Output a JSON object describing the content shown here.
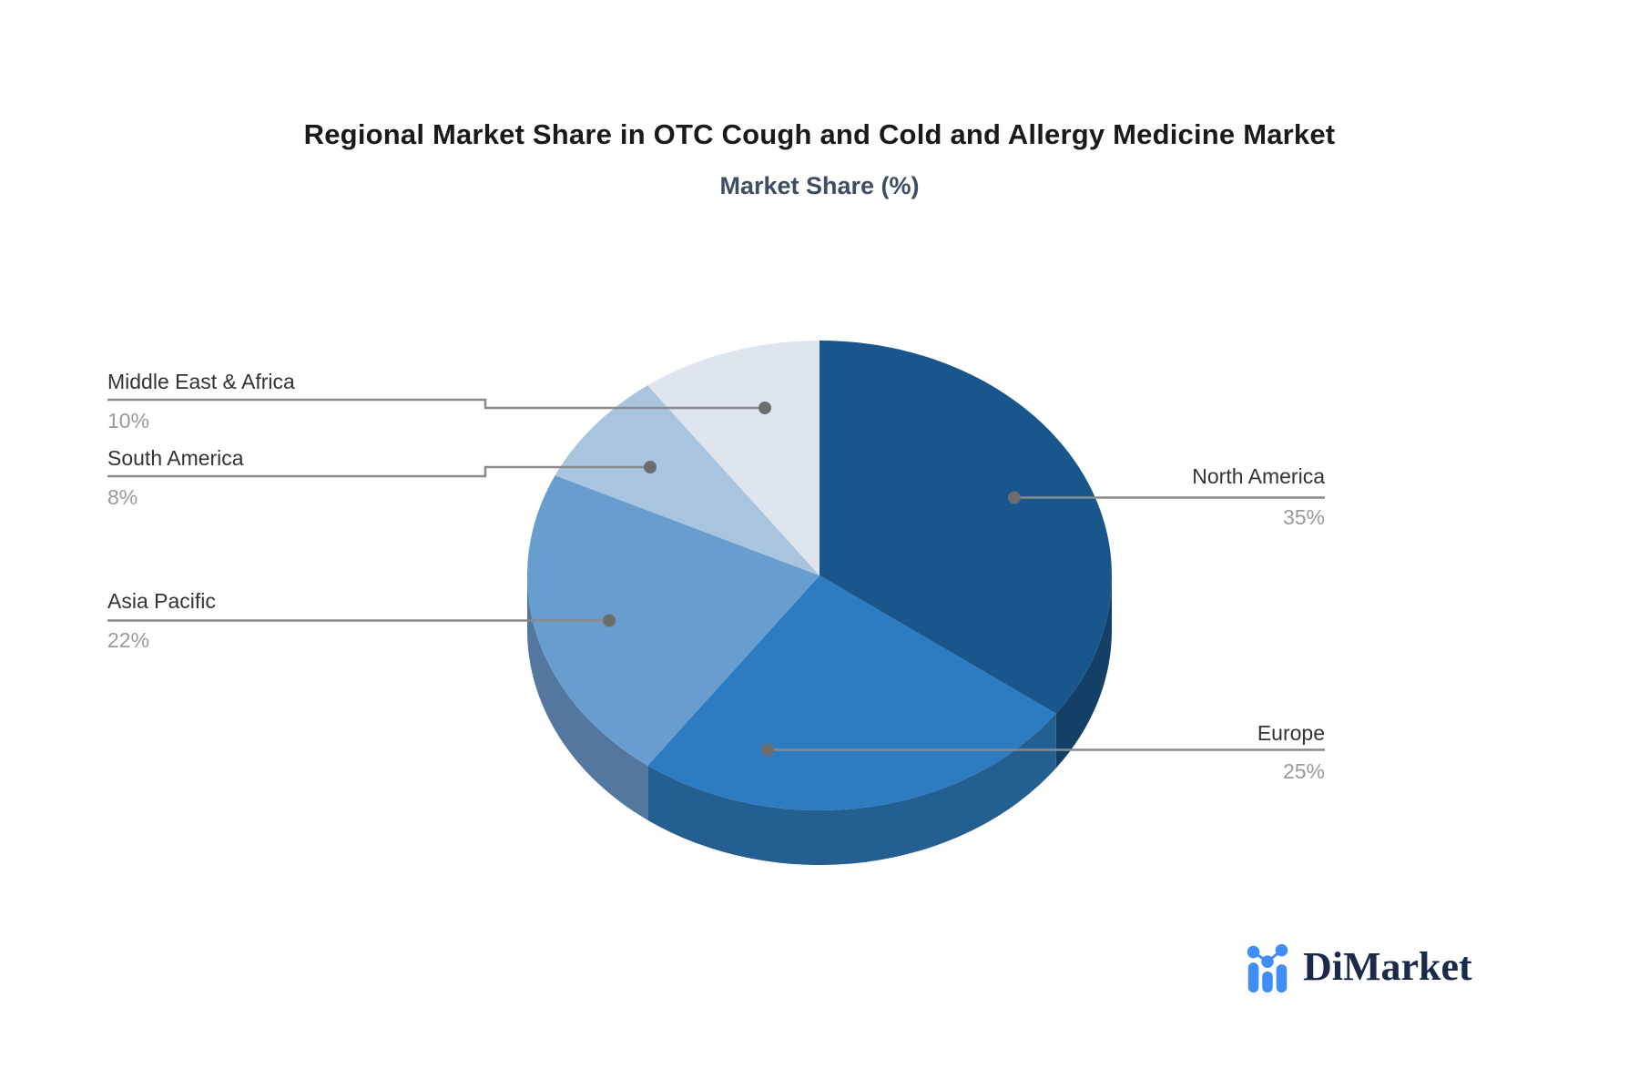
{
  "header": {
    "title": "Regional Market Share in OTC Cough and Cold and Allergy Medicine Market",
    "subtitle": "Market Share (%)"
  },
  "chart_data": {
    "type": "pie",
    "title": "Regional Market Share in OTC Cough and Cold and Allergy Medicine Market",
    "subtitle": "Market Share (%)",
    "unit": "%",
    "style": "3d-pie",
    "start_angle": "12-o-clock",
    "direction": "clockwise",
    "legend_position": "callout-labels",
    "slices": [
      {
        "label": "North America",
        "value": 35,
        "display": "35%",
        "color": "#19568C",
        "side_color": "#143F66",
        "callout_side": "right"
      },
      {
        "label": "Europe",
        "value": 25,
        "display": "25%",
        "color": "#2D7BC0",
        "side_color": "#245F91",
        "callout_side": "right"
      },
      {
        "label": "Asia Pacific",
        "value": 22,
        "display": "22%",
        "color": "#689DCF",
        "side_color": "#53779F",
        "callout_side": "left"
      },
      {
        "label": "South America",
        "value": 8,
        "display": "8%",
        "color": "#A9C4DF",
        "side_color": "#7E94AF",
        "callout_side": "left"
      },
      {
        "label": "Middle East & Africa",
        "value": 10,
        "display": "10%",
        "color": "#DFE5EF",
        "side_color": "#A7ADB8",
        "callout_side": "left"
      }
    ]
  },
  "branding": {
    "logo_text": "DiMarket",
    "logo_icon": "bar-line-chart-icon",
    "logo_icon_color": "#3F8DF5",
    "logo_text_color": "#1B2A4A"
  },
  "styles": {
    "label_color": "#333333",
    "pct_color": "#9A9A9A",
    "leader_line_color": "#8A8A8A",
    "leader_dot_color": "#6D6D6D",
    "background": "#FFFFFF"
  }
}
